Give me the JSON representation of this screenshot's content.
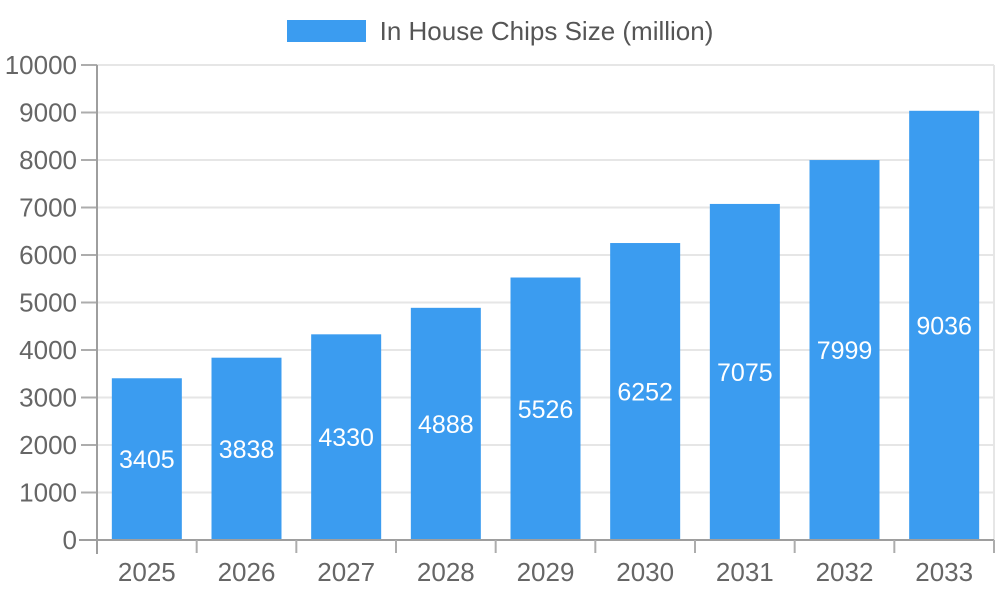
{
  "legend": {
    "label": "In House Chips Size (million)"
  },
  "chart_data": {
    "type": "bar",
    "title": "",
    "series_name": "In House Chips Size (million)",
    "categories": [
      "2025",
      "2026",
      "2027",
      "2028",
      "2029",
      "2030",
      "2031",
      "2032",
      "2033"
    ],
    "values": [
      3405,
      3838,
      4330,
      4888,
      5526,
      6252,
      7075,
      7999,
      9036
    ],
    "xlabel": "",
    "ylabel": "",
    "ylim": [
      0,
      10000
    ],
    "ytick_interval": 1000,
    "yticks": [
      0,
      1000,
      2000,
      3000,
      4000,
      5000,
      6000,
      7000,
      8000,
      9000,
      10000
    ],
    "grid": true,
    "legend_position": "top-center",
    "data_label_position": "inside-center",
    "colors": {
      "bar": "#3B9CF0",
      "data_label": "#FFFFFF",
      "grid_line": "#E6E6E6",
      "axis_line": "#9E9E9E",
      "axis_tick": "#ADADAD",
      "tick_label": "#666666",
      "legend_text": "#555555",
      "background": "#FFFFFF"
    }
  }
}
